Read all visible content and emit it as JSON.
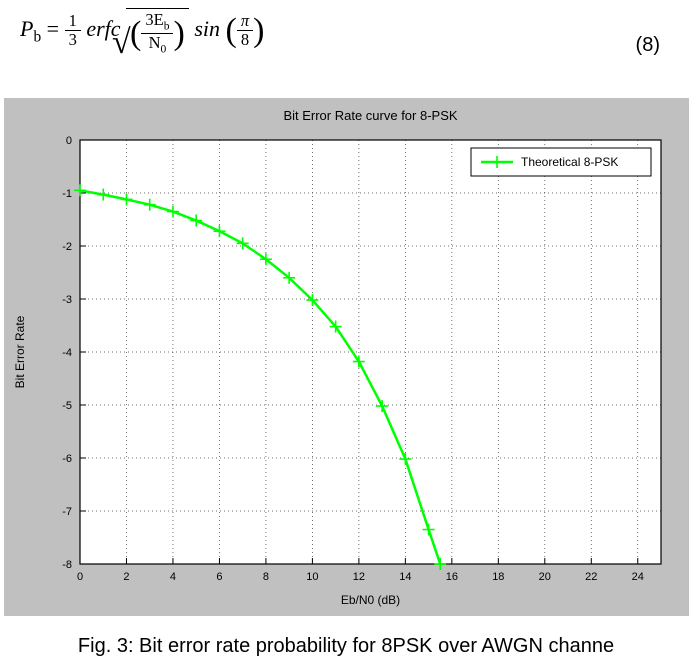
{
  "equation": {
    "lhs_sym": "P",
    "lhs_sub": "b",
    "coef_num": "1",
    "coef_den": "3",
    "erfc": "erfc",
    "inner_num": "3E",
    "inner_num_sub": "b",
    "inner_den": "N",
    "inner_den_sub": "0",
    "sin": "sin",
    "sin_arg_num": "π",
    "sin_arg_den": "8",
    "number": "(8)"
  },
  "chart": {
    "type": "line",
    "title": "Bit Error Rate curve for 8-PSK",
    "title_fontsize": 13,
    "title_color": "#000000",
    "xlabel": "Eb/N0 (dB)",
    "ylabel": "Bit Error Rate",
    "label_fontsize": 12,
    "label_color": "#000000",
    "xlim": [
      0,
      25
    ],
    "ylim": [
      -8,
      0
    ],
    "xtick_step": 2,
    "ytick_step": 1,
    "tick_fontsize": 11,
    "tick_color": "#000000",
    "background_color": "#c0c0c0",
    "plot_bg_color": "#ffffff",
    "grid_color": "#3b3b3b",
    "grid_dash": "1 3",
    "axis_color": "#000000",
    "legend": {
      "label": "Theoretical 8-PSK",
      "position": "top-right",
      "font_size": 12,
      "box_stroke": "#000000",
      "box_fill": "#ffffff"
    },
    "series": {
      "color": "#00ff00",
      "line_width": 2.5,
      "marker": "+",
      "marker_size": 6,
      "x": [
        0,
        1,
        2,
        3,
        4,
        5,
        6,
        7,
        8,
        9,
        10,
        11,
        12,
        13,
        14,
        15,
        15.5
      ],
      "y": [
        -0.95,
        -1.03,
        -1.12,
        -1.22,
        -1.35,
        -1.52,
        -1.72,
        -1.95,
        -2.25,
        -2.6,
        -3.02,
        -3.52,
        -4.18,
        -5.02,
        -6.02,
        -7.35,
        -8.0
      ]
    }
  },
  "caption": "Fig. 3: Bit error rate probability for 8PSK over AWGN channe"
}
